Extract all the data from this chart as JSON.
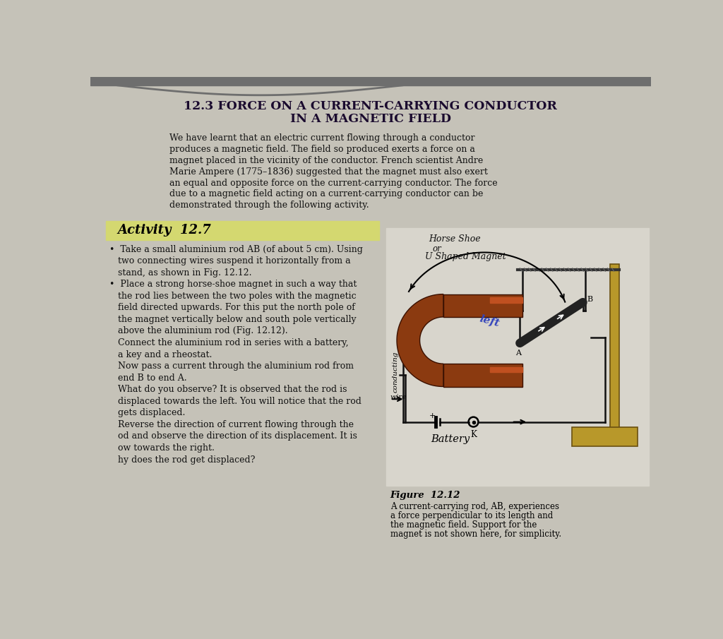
{
  "title_line1": "12.3 FORCE ON A CURRENT-CARRYING CONDUCTOR",
  "title_line2": "IN A MAGNETIC FIELD",
  "body_text_lines": [
    "We have learnt that an electric current flowing through a conductor",
    "produces a magnetic field. The field so produced exerts a force on a",
    "magnet placed in the vicinity of the conductor. French scientist Andre",
    "Marie Ampere (1775–1836) suggested that the magnet must also exert",
    "an equal and opposite force on the current-carrying conductor. The force",
    "due to a magnetic field acting on a current-carrying conductor can be",
    "demonstrated through the following activity."
  ],
  "activity_header": "Activity  12.7",
  "activity_lines": [
    "•  Take a small aluminium rod AB (of about 5 cm). Using",
    "   two connecting wires suspend it horizontally from a",
    "   stand, as shown in Fig. 12.12.",
    "•  Place a strong horse-shoe magnet in such a way that",
    "   the rod lies between the two poles with the magnetic",
    "   field directed upwards. For this put the north pole of",
    "   the magnet vertically below and south pole vertically",
    "   above the aluminium rod (Fig. 12.12).",
    "   Connect the aluminium rod in series with a battery,",
    "   a key and a rheostat.",
    "   Now pass a current through the aluminium rod from",
    "   end B to end A.",
    "   What do you observe? It is observed that the rod is",
    "   displaced towards the left. You will notice that the rod",
    "   gets displaced.",
    "   Reverse the direction of current flowing through the",
    "   od and observe the direction of its displacement. It is",
    "   ow towards the right.",
    "   hy does the rod get displaced?"
  ],
  "fig_caption_bold": "Figure  12.12",
  "fig_caption_lines": [
    "A current-carrying rod, AB, experiences",
    "a force perpendicular to its length and",
    "the magnetic field. Support for the",
    "magnet is not shown here, for simplicity."
  ],
  "bg_color": "#c5c2b8",
  "activity_header_bg": "#d4d870",
  "activity_body_bg": "#c5c2b8",
  "page_lighter": "#d8d5cc",
  "top_bar": "#6e6e6e",
  "title_color": "#1a0a2e",
  "body_color": "#111111",
  "magnet_color": "#8b3a10",
  "magnet_highlight": "#c05020",
  "stand_color": "#b8982a",
  "stand_edge": "#6a5010",
  "rod_color": "#222222",
  "wire_color": "#111111",
  "circuit_color": "#111111"
}
